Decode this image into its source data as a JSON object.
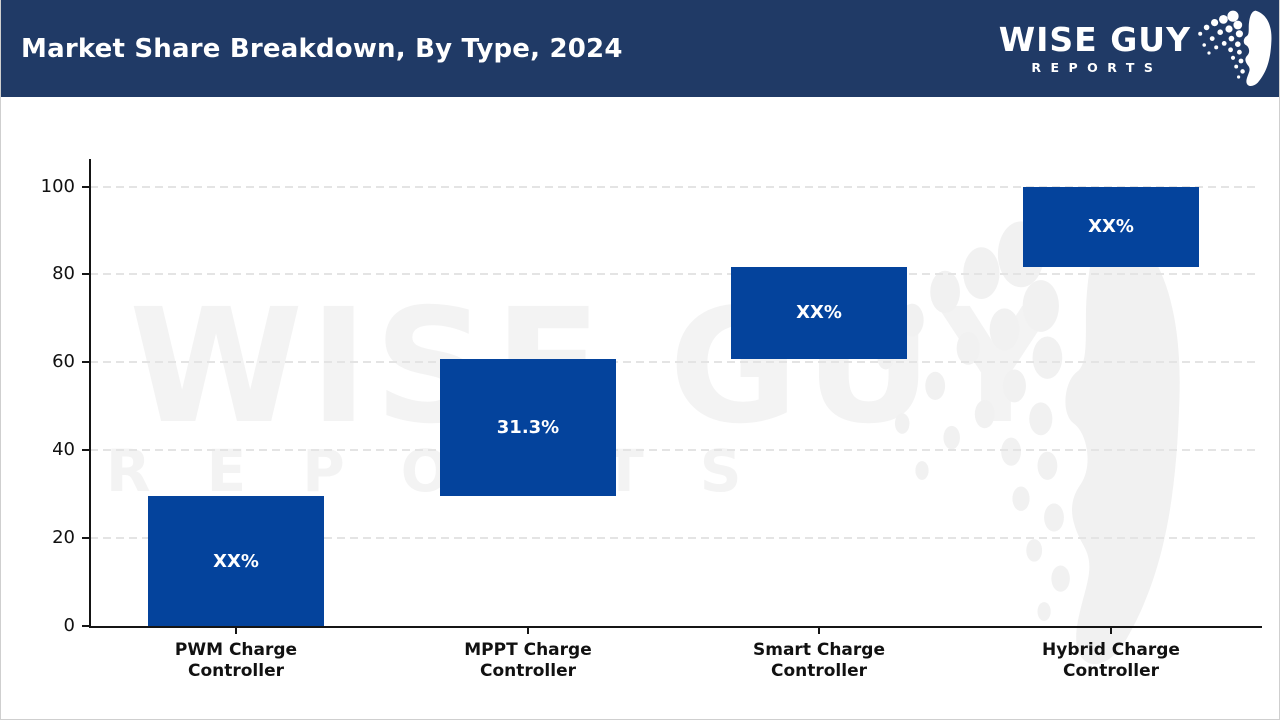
{
  "header": {
    "title": "Market Share Breakdown, By Type, 2024",
    "logo": {
      "line1": "WISE GUY",
      "line2": "REPORTS"
    }
  },
  "watermark": {
    "line1": "WISE GUY",
    "line2": "REPORTS"
  },
  "chart_data": {
    "type": "bar",
    "subtype": "waterfall",
    "title": "Market Share Breakdown, By Type, 2024",
    "categories": [
      "PWM Charge Controller",
      "MPPT Charge Controller",
      "Smart Charge Controller",
      "Hybrid Charge Controller"
    ],
    "segments": [
      {
        "category": "PWM Charge Controller",
        "start": 0,
        "end": 29.5,
        "label": "XX%"
      },
      {
        "category": "MPPT Charge Controller",
        "start": 29.5,
        "end": 60.8,
        "label": "31.3%"
      },
      {
        "category": "Smart Charge Controller",
        "start": 60.8,
        "end": 81.8,
        "label": "XX%"
      },
      {
        "category": "Hybrid Charge Controller",
        "start": 81.8,
        "end": 100,
        "label": "XX%"
      }
    ],
    "ylim": [
      0,
      100
    ],
    "yticks": [
      0,
      20,
      40,
      60,
      80,
      100
    ],
    "xlabel": "",
    "ylabel": "",
    "grid": "horizontal-dashed",
    "legend": "none"
  },
  "colors": {
    "header_bg": "#203A66",
    "bar": "#04439C",
    "bar_label": "#FFFFFF",
    "grid": "#E4E4E4",
    "axis": "#151515",
    "tick_label": "#111111",
    "watermark": "#F2F2F2",
    "page_bg": "#FFFFFF"
  }
}
